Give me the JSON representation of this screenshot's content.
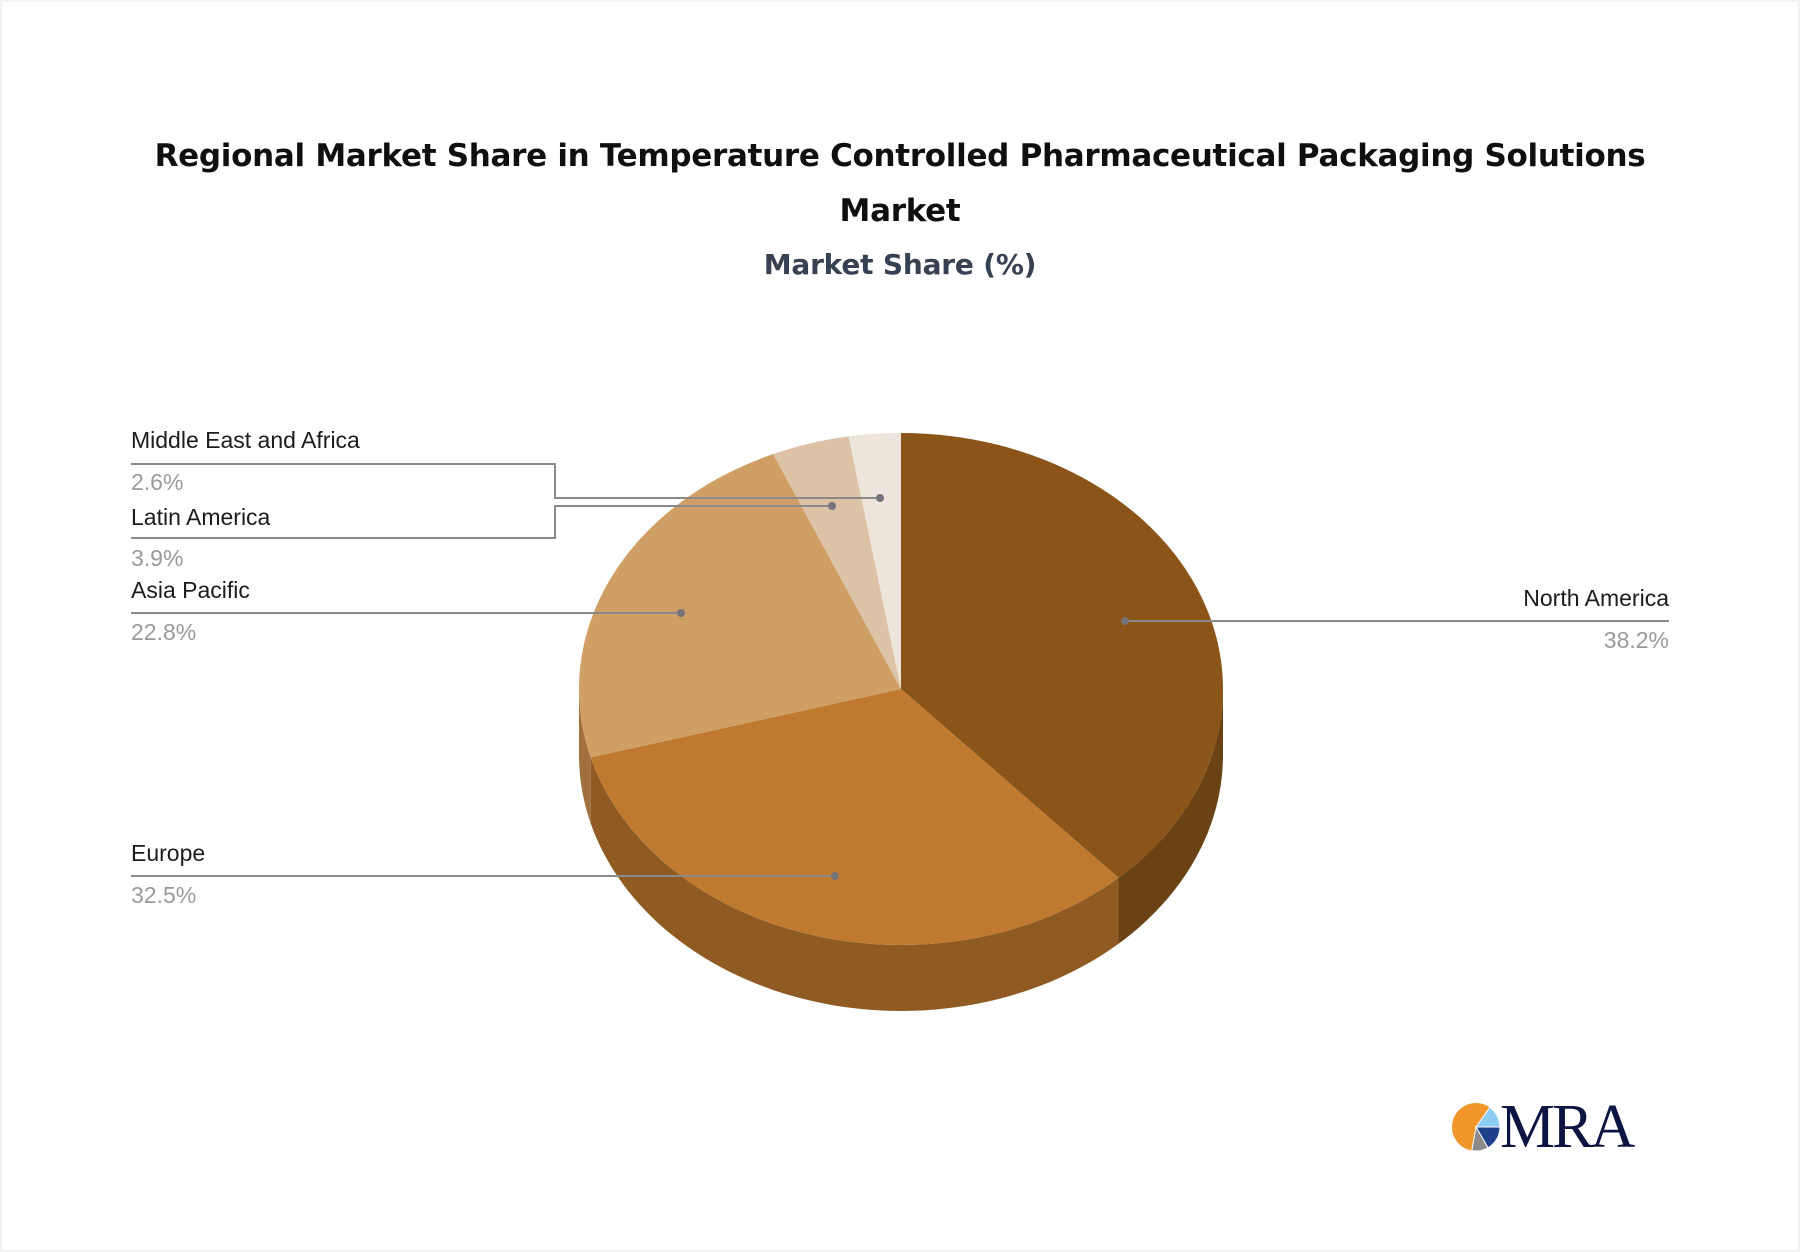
{
  "title": {
    "line1": "Regional Market Share in Temperature Controlled Pharmaceutical Packaging Solutions",
    "line2": "Market",
    "subtitle": "Market Share (%)"
  },
  "logo": {
    "text": "MRA",
    "icon": "pie-logo-icon"
  },
  "chart_data": {
    "type": "pie",
    "style": "3d",
    "title": "Regional Market Share in Temperature Controlled Pharmaceutical Packaging Solutions Market",
    "subtitle": "Market Share (%)",
    "categories": [
      "North America",
      "Europe",
      "Asia Pacific",
      "Latin America",
      "Middle East and Africa"
    ],
    "values": [
      38.2,
      32.5,
      22.8,
      3.9,
      2.6
    ],
    "value_labels": [
      "38.2%",
      "32.5%",
      "22.8%",
      "3.9%",
      "2.6%"
    ],
    "colors": [
      "#8B5519",
      "#BF7A30",
      "#D09F66",
      "#DDC3A6",
      "#EDE4DB"
    ],
    "side_colors": [
      "#6B4214",
      "#8F5B23",
      "#A0703D",
      "#B09880",
      "#C0B5AA"
    ],
    "start_angle_deg": 0,
    "direction": "clockwise",
    "legend": "none (callout labels)"
  },
  "labels": [
    {
      "name": "North America",
      "value": "38.2%"
    },
    {
      "name": "Europe",
      "value": "32.5%"
    },
    {
      "name": "Asia Pacific",
      "value": "22.8%"
    },
    {
      "name": "Latin America",
      "value": "3.9%"
    },
    {
      "name": "Middle East and Africa",
      "value": "2.6%"
    }
  ]
}
